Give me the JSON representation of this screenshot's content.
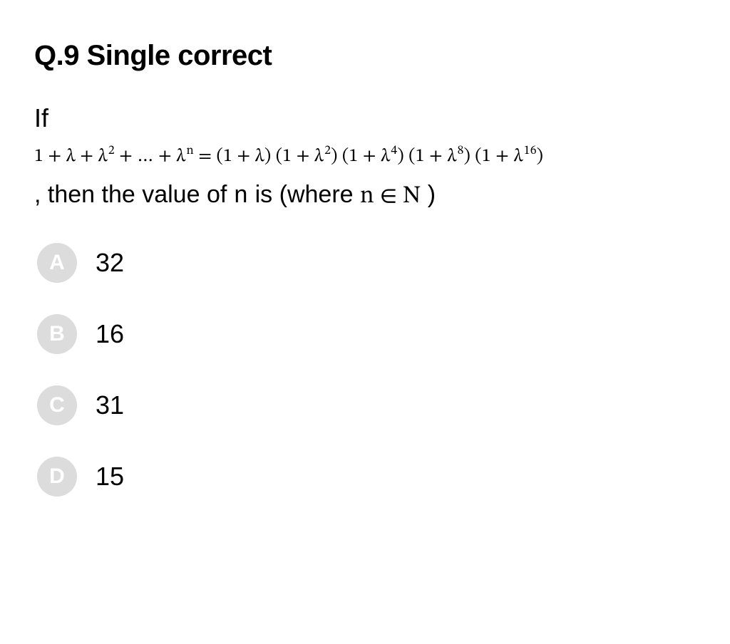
{
  "page": {
    "background_color": "#ffffff",
    "text_color": "#000000",
    "title_fontsize": 40,
    "body_fontsize": 34,
    "option_fontsize": 36,
    "equation_fontsize": 26
  },
  "question": {
    "heading": "Q.9 Single correct",
    "if_label": "If",
    "equation_html": "1 + λ + λ<sup>2</sup> + … + λ<sup>n</sup> = (1 + λ) (1 + λ<sup>2</sup>) (1 + λ<sup>4</sup>) (1 + λ<sup>8</sup>) (1 + λ<sup>16</sup>)",
    "condition_prefix": ", then the value of ",
    "condition_var": "n",
    "condition_mid": " is (where ",
    "condition_set": "n ∈ N",
    "condition_suffix": " )"
  },
  "options": {
    "bubble_bg": "#dcdcdc",
    "bubble_fg": "#ffffff",
    "items": [
      {
        "letter": "A",
        "text": "32"
      },
      {
        "letter": "B",
        "text": "16"
      },
      {
        "letter": "C",
        "text": "31"
      },
      {
        "letter": "D",
        "text": "15"
      }
    ]
  }
}
